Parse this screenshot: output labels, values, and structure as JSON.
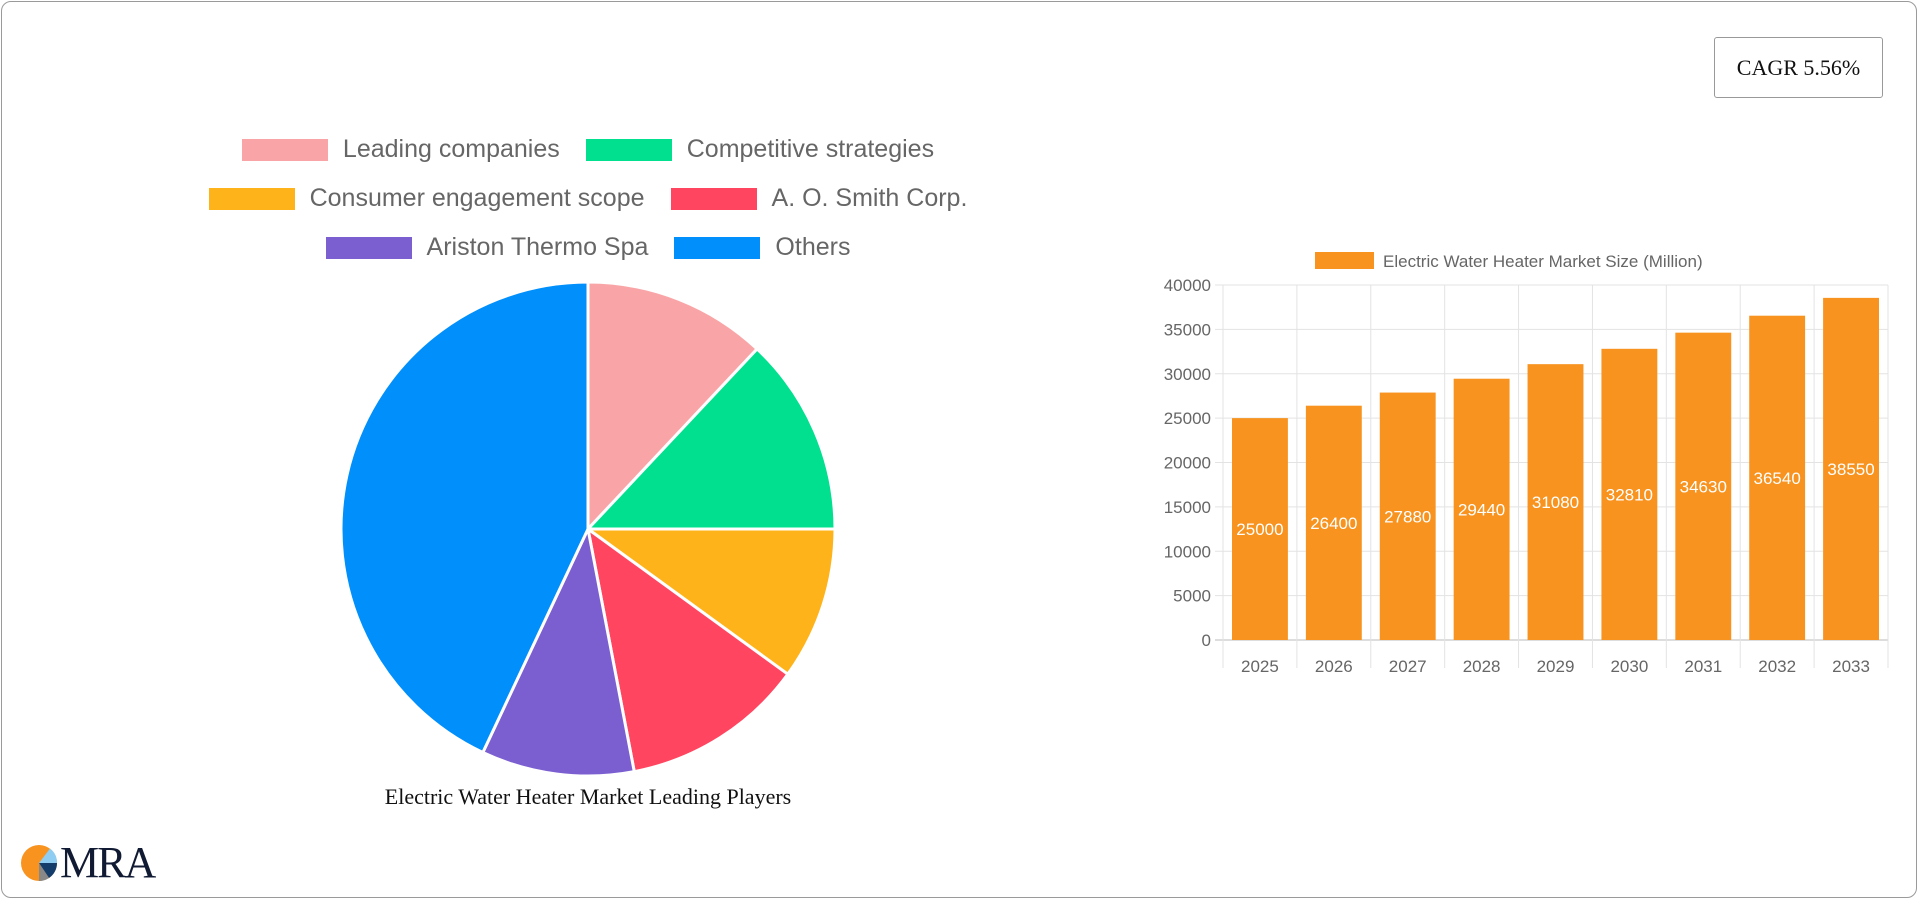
{
  "cagr_label": "CAGR 5.56%",
  "chart_data": [
    {
      "type": "pie",
      "title": "Electric Water Heater Market Leading Players",
      "legend_placement": "top",
      "slices": [
        {
          "label": "Leading companies",
          "value": 12,
          "color": "#f9a5a7"
        },
        {
          "label": "Competitive strategies",
          "value": 13,
          "color": "#00e08f"
        },
        {
          "label": "Consumer engagement scope",
          "value": 10,
          "color": "#ffb31a"
        },
        {
          "label": "A. O. Smith Corp.",
          "value": 12,
          "color": "#ff4560"
        },
        {
          "label": "Ariston Thermo Spa",
          "value": 10,
          "color": "#7b5fd1"
        },
        {
          "label": "Others",
          "value": 43,
          "color": "#008ffb"
        }
      ]
    },
    {
      "type": "bar",
      "legend_placement": "top",
      "grid": true,
      "series": [
        {
          "name": "Electric Water Heater Market Size (Million)",
          "color": "#f7931e",
          "values": [
            25000,
            26400,
            27880,
            29440,
            31080,
            32810,
            34630,
            36540,
            38550
          ]
        }
      ],
      "categories": [
        "2025",
        "2026",
        "2027",
        "2028",
        "2029",
        "2030",
        "2031",
        "2032",
        "2033"
      ],
      "ylim": [
        0,
        40000
      ],
      "yticks": [
        "0",
        "5000",
        "10000",
        "15000",
        "20000",
        "25000",
        "30000",
        "35000",
        "40000"
      ]
    }
  ],
  "logo": {
    "text": "MRA"
  }
}
